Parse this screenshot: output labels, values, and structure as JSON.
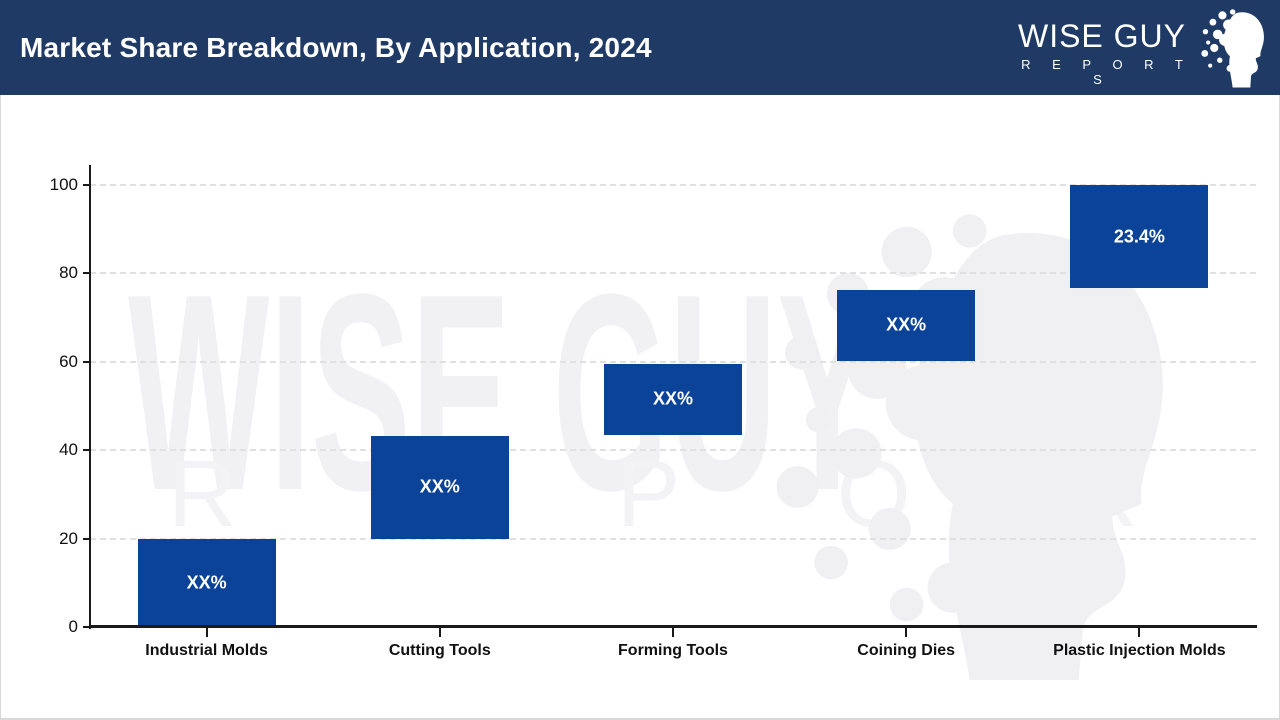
{
  "header": {
    "title": "Market Share Breakdown, By Application, 2024",
    "logo": {
      "name": "WISE GUY",
      "sub": "R E P O R T S"
    }
  },
  "watermark": {
    "name": "WISE GUY",
    "sub": "R E P O R T S"
  },
  "colors": {
    "header_bg": "#203a66",
    "bar": "#0b4399",
    "axis": "#1a1a1a",
    "gridline": "#e0e0e0",
    "bar_label_text": "#ffffff",
    "watermark": "#f1f1f4"
  },
  "chart_data": {
    "type": "bar",
    "subtype": "waterfall",
    "title": "Market Share Breakdown, By Application, 2024",
    "categories": [
      "Industrial Molds",
      "Cutting Tools",
      "Forming Tools",
      "Coining Dies",
      "Plastic Injection Molds"
    ],
    "bars": [
      {
        "category": "Industrial Molds",
        "start": 0,
        "end": 20,
        "label": "XX%"
      },
      {
        "category": "Cutting Tools",
        "start": 20,
        "end": 43.2,
        "label": "XX%"
      },
      {
        "category": "Forming Tools",
        "start": 43.5,
        "end": 59.6,
        "label": "XX%"
      },
      {
        "category": "Coining Dies",
        "start": 60.2,
        "end": 76.3,
        "label": "XX%"
      },
      {
        "category": "Plastic Injection Molds",
        "start": 76.6,
        "end": 100,
        "label": "23.4%"
      }
    ],
    "yticks": [
      0,
      20,
      40,
      60,
      80,
      100
    ],
    "ylim": [
      0,
      104.5
    ],
    "xlabel": "",
    "ylabel": "",
    "grid": "horizontal-dashed",
    "legend": "none"
  }
}
